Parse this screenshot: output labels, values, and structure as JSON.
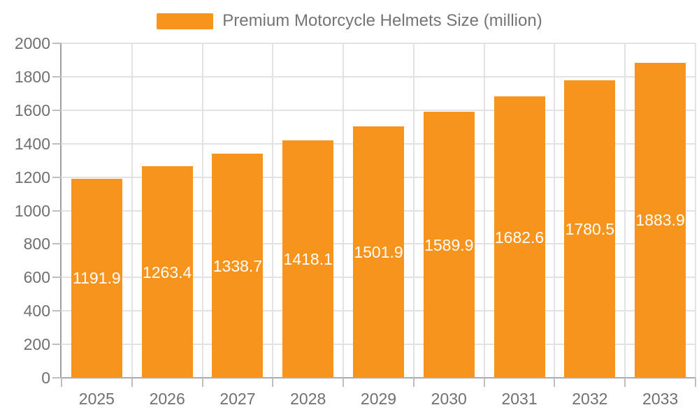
{
  "legend": {
    "label": "Premium Motorcycle Helmets Size (million)"
  },
  "chart_data": {
    "type": "bar",
    "title": "Premium Motorcycle Helmets Size (million)",
    "categories": [
      "2025",
      "2026",
      "2027",
      "2028",
      "2029",
      "2030",
      "2031",
      "2032",
      "2033"
    ],
    "series": [
      {
        "name": "Premium Motorcycle Helmets Size (million)",
        "values": [
          1191.9,
          1263.4,
          1338.7,
          1418.1,
          1501.9,
          1589.9,
          1682.6,
          1780.5,
          1883.9
        ]
      }
    ],
    "xlabel": "",
    "ylabel": "",
    "ylim": [
      0,
      2000
    ],
    "yticks": [
      0,
      200,
      400,
      600,
      800,
      1000,
      1200,
      1400,
      1600,
      1800,
      2000
    ],
    "grid": true,
    "legend_position": "top",
    "bar_label_position": "inside-center",
    "colors": {
      "bar": "#F7941E",
      "bar_label": "#FFFFFF",
      "legend_text": "#757575",
      "axis_text": "#707070",
      "grid_line": "#E2E2E2",
      "axis_line": "#9E9E9E",
      "tick_line": "#BEBEBE",
      "background": "#FFFFFF"
    }
  }
}
